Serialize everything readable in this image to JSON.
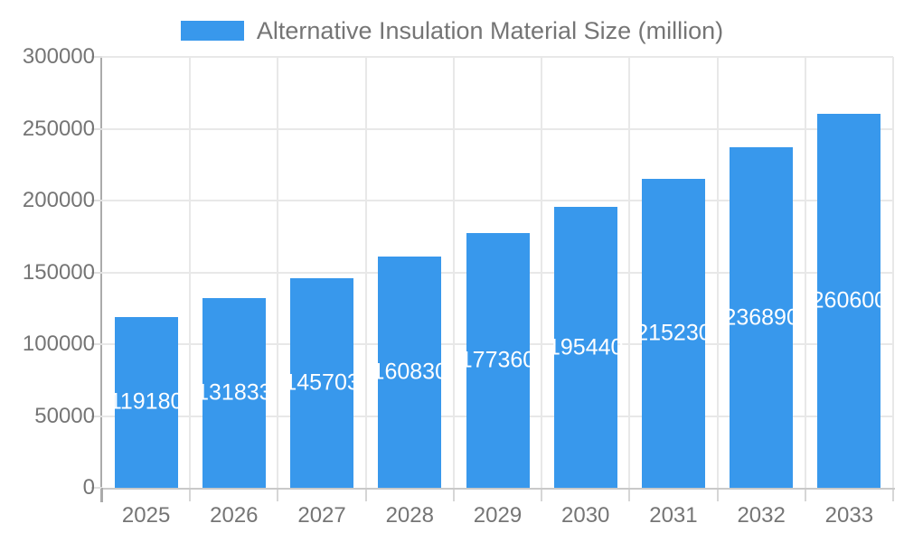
{
  "chart_data": {
    "type": "bar",
    "title": "Alternative Insulation Material Size (million)",
    "legend_position": "top",
    "categories": [
      "2025",
      "2026",
      "2027",
      "2028",
      "2029",
      "2030",
      "2031",
      "2032",
      "2033"
    ],
    "series": [
      {
        "name": "Alternative Insulation Material Size (million)",
        "values": [
          119180,
          131833,
          145703,
          160830,
          177360,
          195440,
          215230,
          236890,
          260600
        ]
      }
    ],
    "value_labels": [
      "119180",
      "131833",
      "145703",
      "160830",
      "177360",
      "195440",
      "215230",
      "236890",
      "260600"
    ],
    "xlabel": "",
    "ylabel": "",
    "ylim": [
      0,
      300000
    ],
    "ytick_step": 50000,
    "ytick_labels": [
      "0",
      "50000",
      "100000",
      "150000",
      "200000",
      "250000",
      "300000"
    ],
    "grid": true,
    "colors": {
      "bar": "#3898ec",
      "value_label_text": "#ffffff",
      "axis_text": "#757575",
      "gridline": "#e8e8e8",
      "y_axis_line": "#ababab",
      "x_axis_line": "#c9c9c9"
    }
  }
}
